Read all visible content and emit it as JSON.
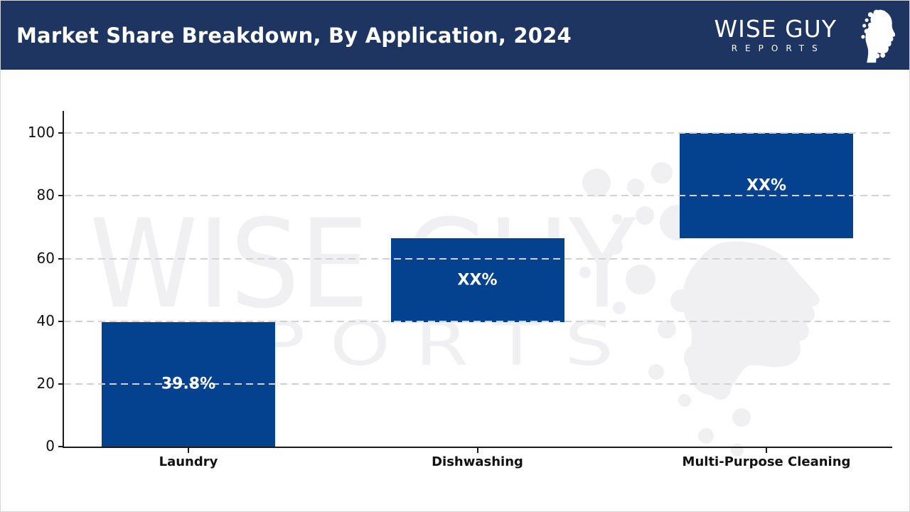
{
  "header": {
    "title": "Market Share Breakdown, By Application, 2024",
    "logo": {
      "wordmark": "WISE GUY",
      "subtext": "REPORTS"
    }
  },
  "watermark": {
    "line1": "WISE GUY",
    "line2": "R E P O R T S"
  },
  "chart_data": {
    "type": "bar",
    "variant": "waterfall",
    "title": "Market Share Breakdown, By Application, 2024",
    "categories": [
      "Laundry",
      "Dishwashing",
      "Multi-Purpose Cleaning"
    ],
    "segments": [
      {
        "category": "Laundry",
        "start": 0,
        "end": 39.8,
        "value": 39.8,
        "label": "39.8%"
      },
      {
        "category": "Dishwashing",
        "start": 39.8,
        "end": 66.5,
        "value": 26.7,
        "label": "XX%"
      },
      {
        "category": "Multi-Purpose Cleaning",
        "start": 66.5,
        "end": 100,
        "value": 33.5,
        "label": "XX%"
      }
    ],
    "xlabel": "",
    "ylabel": "",
    "ylim": [
      0,
      100
    ],
    "yticks": [
      0,
      20,
      40,
      60,
      80,
      100
    ],
    "grid": true,
    "grid_style": "dashed",
    "legend": false,
    "bar_color": "#04418f",
    "value_label_color": "#ffffff"
  },
  "colors": {
    "header_bg": "#1e3561",
    "bar": "#04418f",
    "watermark": "#f0f0f3",
    "grid": "#d2d2d2",
    "axis": "#1a1a1a",
    "text": "#111111"
  }
}
